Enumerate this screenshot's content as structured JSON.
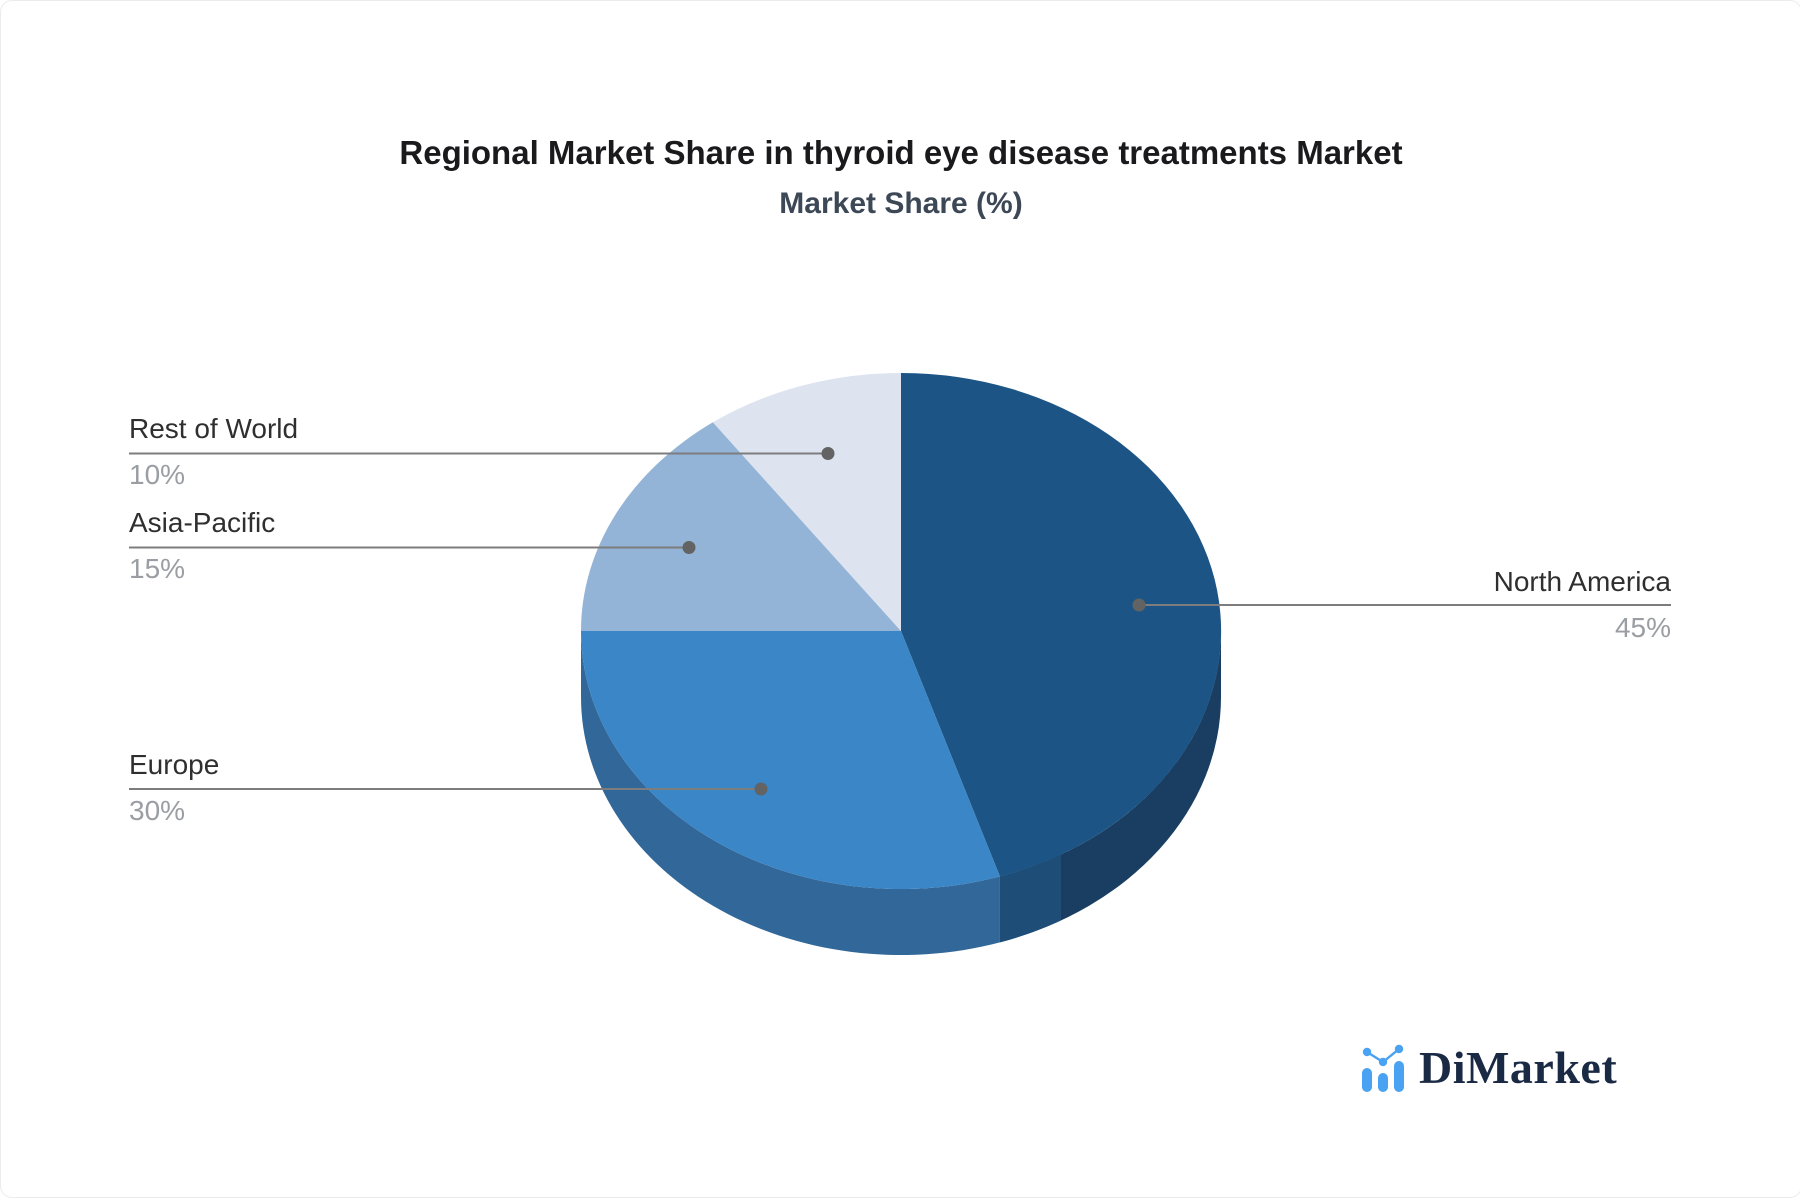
{
  "title": "Regional Market Share in thyroid eye disease treatments Market",
  "subtitle": "Market Share (%)",
  "branding": {
    "name": "DiMarket"
  },
  "chart_data": {
    "type": "pie",
    "style": "3d",
    "title": "Regional Market Share in thyroid eye disease treatments Market",
    "value_label": "Market Share (%)",
    "unit": "%",
    "start_angle": "12-o-clock",
    "direction": "clockwise",
    "legend_position": "callout-labels",
    "slices": [
      {
        "label": "North America",
        "value": 45,
        "display_value": "45%",
        "color": "#1c5585",
        "side_color": "#193e61"
      },
      {
        "label": "Europe",
        "value": 30,
        "display_value": "30%",
        "color": "#3a86c7",
        "side_color": "#326899"
      },
      {
        "label": "Asia-Pacific",
        "value": 15,
        "display_value": "15%",
        "color": "#93b4d7",
        "side_color": "#7fa3c9"
      },
      {
        "label": "Rest of World",
        "value": 10,
        "display_value": "10%",
        "color": "#dde4f0",
        "side_color": "#c5cfe0"
      }
    ],
    "colors": {
      "leader_line": "#7d7d7d",
      "dot": "#636363",
      "cut_face_highlight": "#1e4d78",
      "label_text": "#2f2f2f",
      "value_text": "#9a9ea3"
    }
  }
}
